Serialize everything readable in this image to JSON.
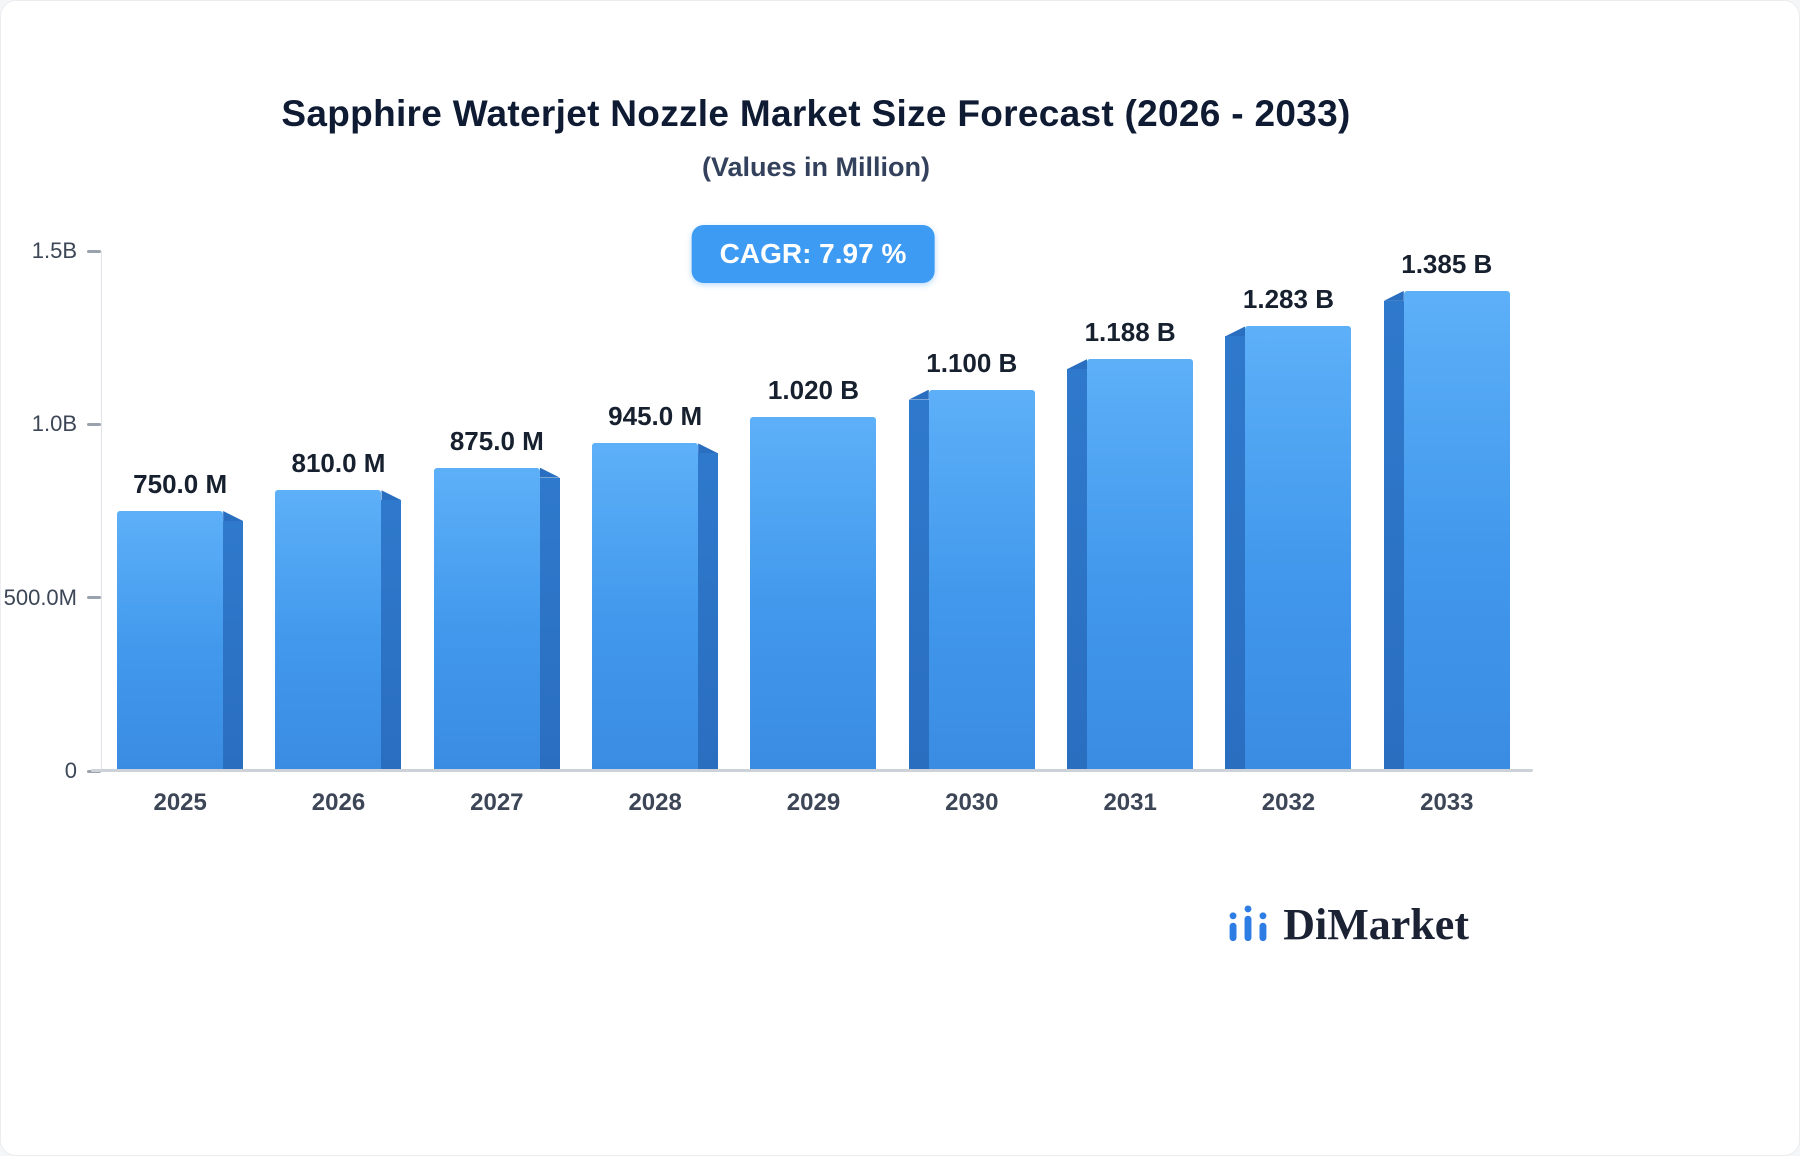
{
  "header": {
    "title": "Sapphire Waterjet Nozzle Market Size Forecast (2026 - 2033)",
    "subtitle": "(Values in Million)",
    "cagr_label": "CAGR: 7.97 %"
  },
  "colors": {
    "badge_bg": "#3E9BF4",
    "bar_main": "#4198ec",
    "bar_side": "#2a6ec0",
    "logo_icon": "#2e7de4"
  },
  "chart_data": {
    "type": "bar",
    "title": "Sapphire Waterjet Nozzle Market Size Forecast (2026 - 2033)",
    "subtitle": "(Values in Million)",
    "unit": "Million",
    "categories": [
      "2025",
      "2026",
      "2027",
      "2028",
      "2029",
      "2030",
      "2031",
      "2032",
      "2033"
    ],
    "values": [
      750,
      810,
      875,
      945,
      1020,
      1100,
      1188,
      1283,
      1385
    ],
    "value_labels": [
      "750.0 M",
      "810.0 M",
      "875.0 M",
      "945.0 M",
      "1.020 B",
      "1.100 B",
      "1.188 B",
      "1.283 B",
      "1.385 B"
    ],
    "xlabel": "",
    "ylabel": "",
    "ylim": [
      0,
      1500
    ],
    "yticks": [
      {
        "value": 1500,
        "label": "1.5B"
      },
      {
        "value": 1000,
        "label": "1.0B"
      },
      {
        "value": 500,
        "label": "500.0M"
      },
      {
        "value": 0,
        "label": "0"
      }
    ],
    "grid": false,
    "legend": "none",
    "annotation": "CAGR: 7.97 %"
  },
  "branding": {
    "logo_text": "DiMarket",
    "logo_icon": "bar-chart-icon"
  }
}
